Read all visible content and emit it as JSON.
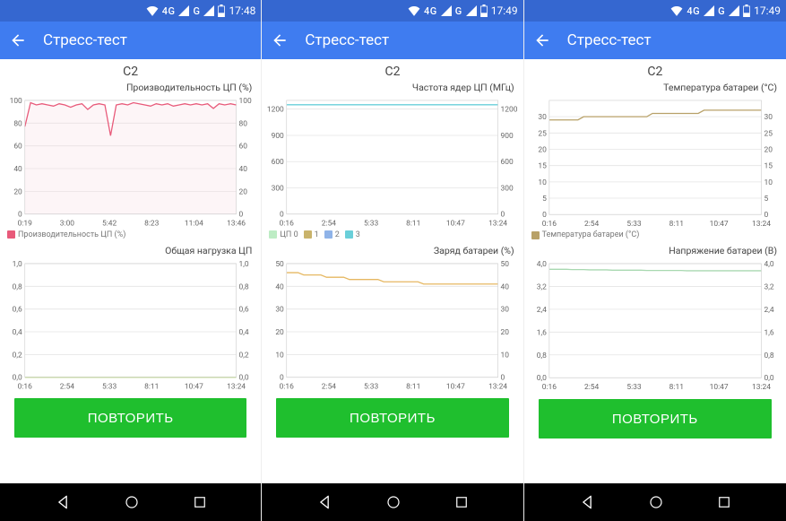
{
  "colors": {
    "status_bar_bg": "#3567d0",
    "app_bar_bg": "#3f7cf0",
    "button_bg": "#1fbf2e",
    "nav_bg": "#000000",
    "grid": "#e4e4e4",
    "axis_text": "#666666"
  },
  "screens": [
    {
      "status_time": "17:48",
      "status_net": "4G",
      "app_title": "Стресс-тест",
      "device": "C2",
      "button_label": "ПОВТОРИТЬ",
      "charts": [
        {
          "title": "Производительность ЦП (%)",
          "ylim": [
            0,
            100
          ],
          "ytick_step": 20,
          "xlabels": [
            "0:19",
            "3:00",
            "5:42",
            "8:23",
            "11:04",
            "13:46"
          ],
          "legend": [
            {
              "label": "Производительность ЦП (%)",
              "color": "#e85a7a"
            }
          ],
          "series": [
            {
              "color": "#e85a7a",
              "fill": "#f8d6de",
              "values": [
                77,
                98,
                96,
                97,
                96,
                95,
                97,
                96,
                94,
                96,
                97,
                92,
                96,
                97,
                96,
                69,
                96,
                97,
                96,
                98,
                97,
                96,
                95,
                97,
                96,
                97,
                95,
                96,
                97,
                96,
                97,
                96,
                97,
                93,
                97,
                96,
                97,
                96
              ]
            }
          ]
        },
        {
          "title": "Общая нагрузка ЦП",
          "ylim": [
            0.0,
            1.0
          ],
          "ytick_step": 0.2,
          "decimals": 1,
          "xlabels": [
            "0:16",
            "2:54",
            "5:33",
            "8:11",
            "10:47",
            "13:24"
          ],
          "legend": [],
          "series": [
            {
              "color": "#b9d97f",
              "values": [
                0,
                0,
                0,
                0,
                0,
                0,
                0,
                0,
                0,
                0,
                0,
                0,
                0,
                0,
                0,
                0,
                0,
                0,
                0,
                0,
                0,
                0,
                0,
                0,
                0,
                0,
                0,
                0,
                0,
                0,
                0,
                0,
                0,
                0,
                0,
                0,
                0,
                0
              ]
            }
          ]
        }
      ]
    },
    {
      "status_time": "17:49",
      "status_net": "4G",
      "app_title": "Стресс-тест",
      "device": "C2",
      "button_label": "ПОВТОРИТЬ",
      "charts": [
        {
          "title": "Частота ядер ЦП (МГц)",
          "ylim": [
            0,
            1300
          ],
          "yticks": [
            0,
            300,
            600,
            900,
            1200
          ],
          "xlabels": [
            "0:16",
            "2:54",
            "5:33",
            "8:11",
            "10:47",
            "13:24"
          ],
          "legend": [
            {
              "label": "ЦП 0",
              "color": "#bdecc4"
            },
            {
              "label": "1",
              "color": "#c9b36b"
            },
            {
              "label": "2",
              "color": "#8fb3e8"
            },
            {
              "label": "3",
              "color": "#6acfd9"
            }
          ],
          "series": [
            {
              "color": "#6acfd9",
              "values": [
                1250,
                1250,
                1250,
                1250,
                1250,
                1250,
                1250,
                1250,
                1250,
                1250,
                1250,
                1250,
                1250,
                1250,
                1250,
                1250,
                1250,
                1250,
                1250,
                1250,
                1250,
                1250,
                1250,
                1250,
                1250,
                1250,
                1250,
                1250,
                1250,
                1250,
                1250,
                1250,
                1250,
                1250,
                1250,
                1250,
                1250,
                1250
              ]
            }
          ]
        },
        {
          "title": "Заряд батареи (%)",
          "ylim": [
            0,
            50
          ],
          "ytick_step": 10,
          "xlabels": [
            "0:16",
            "2:54",
            "5:33",
            "8:11",
            "10:47",
            "13:24"
          ],
          "legend": [],
          "series": [
            {
              "color": "#e6b862",
              "values": [
                46,
                46,
                46,
                45,
                45,
                45,
                45,
                44,
                44,
                44,
                44,
                43,
                43,
                43,
                43,
                43,
                43,
                42,
                42,
                42,
                42,
                42,
                42,
                42,
                41,
                41,
                41,
                41,
                41,
                41,
                41,
                41,
                41,
                41,
                41,
                41,
                41,
                41
              ]
            }
          ]
        }
      ]
    },
    {
      "status_time": "17:49",
      "status_net": "4G",
      "app_title": "Стресс-тест",
      "device": "C2",
      "button_label": "ПОВТОРИТЬ",
      "charts": [
        {
          "title": "Температура батареи (°C)",
          "ylim": [
            0,
            35
          ],
          "yticks": [
            0,
            5,
            10,
            15,
            20,
            25,
            30
          ],
          "xlabels": [
            "0:16",
            "2:54",
            "5:33",
            "8:11",
            "10:47",
            "13:24"
          ],
          "legend": [
            {
              "label": "Температура батареи (°C)",
              "color": "#b8a168"
            }
          ],
          "series": [
            {
              "color": "#b8a168",
              "values": [
                29,
                29,
                29,
                29,
                29,
                29,
                30,
                30,
                30,
                30,
                30,
                30,
                30,
                30,
                30,
                30,
                30,
                30,
                31,
                31,
                31,
                31,
                31,
                31,
                31,
                31,
                31,
                32,
                32,
                32,
                32,
                32,
                32,
                32,
                32,
                32,
                32,
                32
              ]
            }
          ]
        },
        {
          "title": "Напряжение батареи (В)",
          "ylim": [
            0.0,
            4.0
          ],
          "ytick_step": 0.8,
          "decimals": 1,
          "xlabels": [
            "0:16",
            "2:54",
            "5:33",
            "8:11",
            "10:47",
            "13:24"
          ],
          "legend": [],
          "series": [
            {
              "color": "#a8d8b0",
              "values": [
                3.8,
                3.8,
                3.8,
                3.8,
                3.79,
                3.79,
                3.79,
                3.78,
                3.78,
                3.78,
                3.78,
                3.77,
                3.77,
                3.77,
                3.77,
                3.77,
                3.77,
                3.76,
                3.76,
                3.76,
                3.76,
                3.76,
                3.76,
                3.76,
                3.75,
                3.75,
                3.75,
                3.75,
                3.75,
                3.75,
                3.75,
                3.75,
                3.75,
                3.75,
                3.75,
                3.75,
                3.75,
                3.75
              ]
            }
          ]
        }
      ]
    }
  ]
}
